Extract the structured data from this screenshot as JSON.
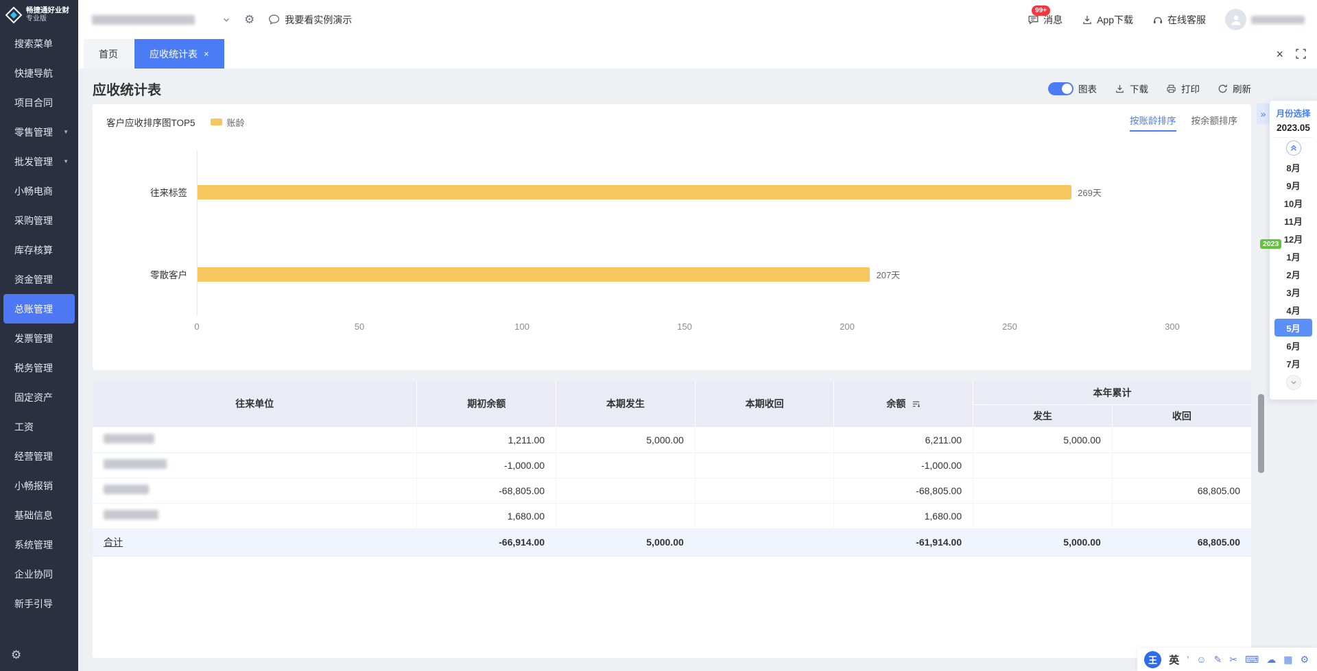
{
  "colors": {
    "accent": "#4b7cf5",
    "bar": "#f6c75f",
    "sidebar_bg": "#2a3040",
    "badge_red": "#f5353d",
    "year_badge_green": "#62c33c",
    "table_header_bg": "#e9ecf4",
    "total_row_bg": "#f0f4fc"
  },
  "brand": {
    "name": "畅捷通好业财",
    "edition": "专业版"
  },
  "sidebar": {
    "items": [
      {
        "label": "搜索菜单"
      },
      {
        "label": "快捷导航"
      },
      {
        "label": "项目合同"
      },
      {
        "label": "零售管理",
        "expandable": true
      },
      {
        "label": "批发管理",
        "expandable": true
      },
      {
        "label": "小畅电商"
      },
      {
        "label": "采购管理"
      },
      {
        "label": "库存核算"
      },
      {
        "label": "资金管理"
      },
      {
        "label": "总账管理",
        "active": true
      },
      {
        "label": "发票管理"
      },
      {
        "label": "税务管理"
      },
      {
        "label": "固定资产"
      },
      {
        "label": "工资"
      },
      {
        "label": "经营管理"
      },
      {
        "label": "小畅报销"
      },
      {
        "label": "基础信息"
      },
      {
        "label": "系统管理"
      },
      {
        "label": "企业协同"
      },
      {
        "label": "新手引导"
      }
    ]
  },
  "topbar": {
    "demo_label": "我要看实例演示",
    "messages_label": "消息",
    "messages_badge": "99+",
    "app_download_label": "App下载",
    "support_label": "在线客服"
  },
  "tabs": {
    "home": "首页",
    "active_tab": "应收统计表"
  },
  "page": {
    "title": "应收统计表",
    "toolbar": {
      "chart_toggle": "图表",
      "download": "下载",
      "print": "打印",
      "refresh": "刷新"
    }
  },
  "chart_card": {
    "legend_title": "客户应收排序图TOP5",
    "legend_series": "账龄",
    "sort_by_aging": "按账龄排序",
    "sort_by_balance": "按余额排序"
  },
  "chart_data": {
    "type": "bar",
    "orientation": "horizontal",
    "title": "客户应收排序图TOP5",
    "series_name": "账龄",
    "categories": [
      "往来标签",
      "零散客户"
    ],
    "values": [
      269,
      207
    ],
    "value_labels": [
      "269天",
      "207天"
    ],
    "unit": "天",
    "xlim": [
      0,
      300
    ],
    "x_ticks": [
      0,
      50,
      100,
      150,
      200,
      250,
      300
    ],
    "bar_color": "#f6c75f",
    "grid": false,
    "legend_position": "top-left"
  },
  "table": {
    "col_unit": "往来单位",
    "col_opening": "期初余额",
    "col_current": "本期发生",
    "col_received": "本期收回",
    "col_balance": "余额",
    "col_ytd": "本年累计",
    "col_ytd_occurred": "发生",
    "col_ytd_received": "收回",
    "rows": [
      {
        "unit_redacted": true,
        "opening": "1,211.00",
        "current": "5,000.00",
        "received": "",
        "balance": "6,211.00",
        "ytd_occurred": "5,000.00",
        "ytd_received": ""
      },
      {
        "unit_redacted": true,
        "opening": "-1,000.00",
        "current": "",
        "received": "",
        "balance": "-1,000.00",
        "ytd_occurred": "",
        "ytd_received": ""
      },
      {
        "unit_redacted": true,
        "opening": "-68,805.00",
        "current": "",
        "received": "",
        "balance": "-68,805.00",
        "ytd_occurred": "",
        "ytd_received": "68,805.00"
      },
      {
        "unit_redacted": true,
        "opening": "1,680.00",
        "current": "",
        "received": "",
        "balance": "1,680.00",
        "ytd_occurred": "",
        "ytd_received": ""
      }
    ],
    "total": {
      "label": "合计",
      "opening": "-66,914.00",
      "current": "5,000.00",
      "received": "",
      "balance": "-61,914.00",
      "ytd_occurred": "5,000.00",
      "ytd_received": "68,805.00"
    }
  },
  "month_panel": {
    "title": "月份选择",
    "current_period": "2023.05",
    "year_badge": "2023",
    "months": [
      "8月",
      "9月",
      "10月",
      "11月",
      "12月",
      "1月",
      "2月",
      "3月",
      "4月",
      "5月",
      "6月",
      "7月"
    ],
    "active_month": "5月",
    "active_index": 9
  },
  "ime": {
    "input_badge": "王",
    "lang": "英",
    "icon_names": [
      "punctuation",
      "emoji",
      "handwriting",
      "screenshot",
      "keyboard",
      "cloud",
      "toolbox",
      "settings"
    ]
  },
  "icons": {
    "gear": "⚙",
    "caret_down": "▼",
    "close": "×",
    "collapse_left": "»",
    "ime": [
      "’",
      "☺",
      "✎",
      "✂",
      "⌨",
      "☁",
      "▦",
      "⚙"
    ]
  }
}
